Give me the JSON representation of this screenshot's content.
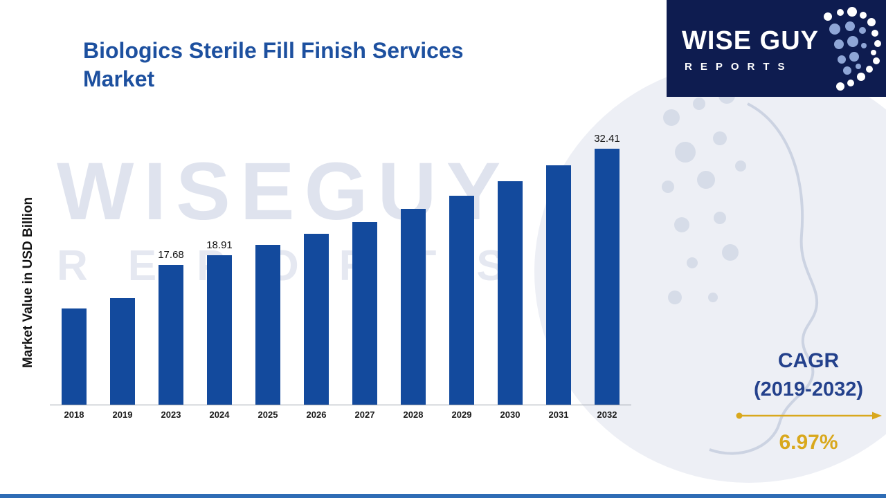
{
  "header": {
    "title": "Biologics Sterile Fill Finish Services Market"
  },
  "logo": {
    "name_line": "WISE GUY",
    "sub_line": "REPORTS"
  },
  "watermark": {
    "line1": "WISEGUY",
    "line2": "REPORTS"
  },
  "cagr": {
    "label": "CAGR",
    "range": "(2019-2032)",
    "value": "6.97%"
  },
  "colors": {
    "bar": "#134a9d",
    "title_text": "#1d509f",
    "logo_background": "#0e1c50",
    "gold_accent": "#d9a81d",
    "cagr_text": "#24418c",
    "bottom_strip": "#2e6cb5",
    "circle_background": "#edeff5"
  },
  "chart_data": {
    "type": "bar",
    "title": "Biologics Sterile Fill Finish Services Market",
    "ylabel": "Market Value in USD Billion",
    "xlabel": "",
    "categories": [
      "2018",
      "2019",
      "2023",
      "2024",
      "2025",
      "2026",
      "2027",
      "2028",
      "2029",
      "2030",
      "2031",
      "2032"
    ],
    "values": [
      12.2,
      13.5,
      17.68,
      18.91,
      20.2,
      21.6,
      23.1,
      24.8,
      26.4,
      28.3,
      30.3,
      32.41
    ],
    "bar_labels": [
      "",
      "",
      "17.68",
      "18.91",
      "",
      "",
      "",
      "",
      "",
      "",
      "",
      "32.41"
    ],
    "ylim": [
      0,
      35
    ],
    "grid": false,
    "legend": "none",
    "bar_color": "#134a9d"
  }
}
